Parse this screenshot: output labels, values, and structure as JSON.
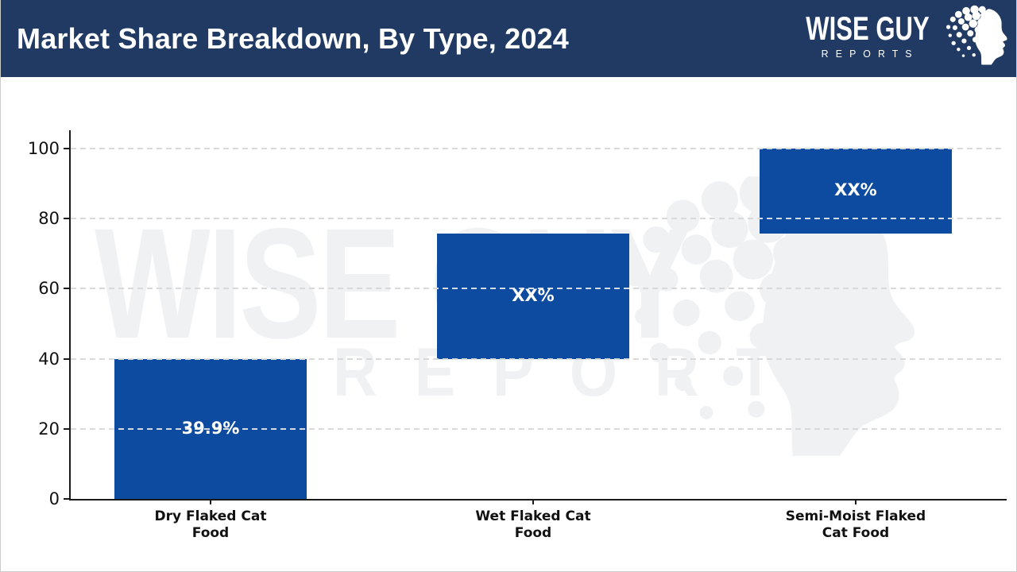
{
  "header": {
    "title": "Market Share Breakdown, By Type, 2024",
    "logo": {
      "line1": "WISE GUY",
      "line2": "R E P O R T S"
    }
  },
  "watermark": {
    "line1": "WISE GUY",
    "line2": "R E P O R T S"
  },
  "colors": {
    "header_navy": "#213a63",
    "bar_blue": "#0c4b9f",
    "grid_gray": "#d9d9d9",
    "axis_black": "#1a1a1a",
    "text_black": "#111111",
    "label_white": "#ffffff",
    "watermark_gray": "#f0f1f3"
  },
  "chart_data": {
    "type": "bar",
    "subtype": "waterfall-stacked-percent",
    "title": "Market Share Breakdown, By Type, 2024",
    "categories": [
      [
        "Dry Flaked Cat",
        "Food"
      ],
      [
        "Wet Flaked Cat",
        "Food"
      ],
      [
        "Semi-Moist Flaked",
        "Cat Food"
      ]
    ],
    "segments": [
      {
        "label": "39.9%",
        "start": 0,
        "end": 39.9
      },
      {
        "label": "XX%",
        "start": 39.9,
        "end": 75.8
      },
      {
        "label": "XX%",
        "start": 75.8,
        "end": 100
      }
    ],
    "ylim": [
      0,
      100
    ],
    "yticks": [
      0,
      20,
      40,
      60,
      80,
      100
    ],
    "grid": "dashed-horizontal",
    "legend": "none",
    "bar_color": "#0c4b9f",
    "value_label_color": "#ffffff"
  }
}
